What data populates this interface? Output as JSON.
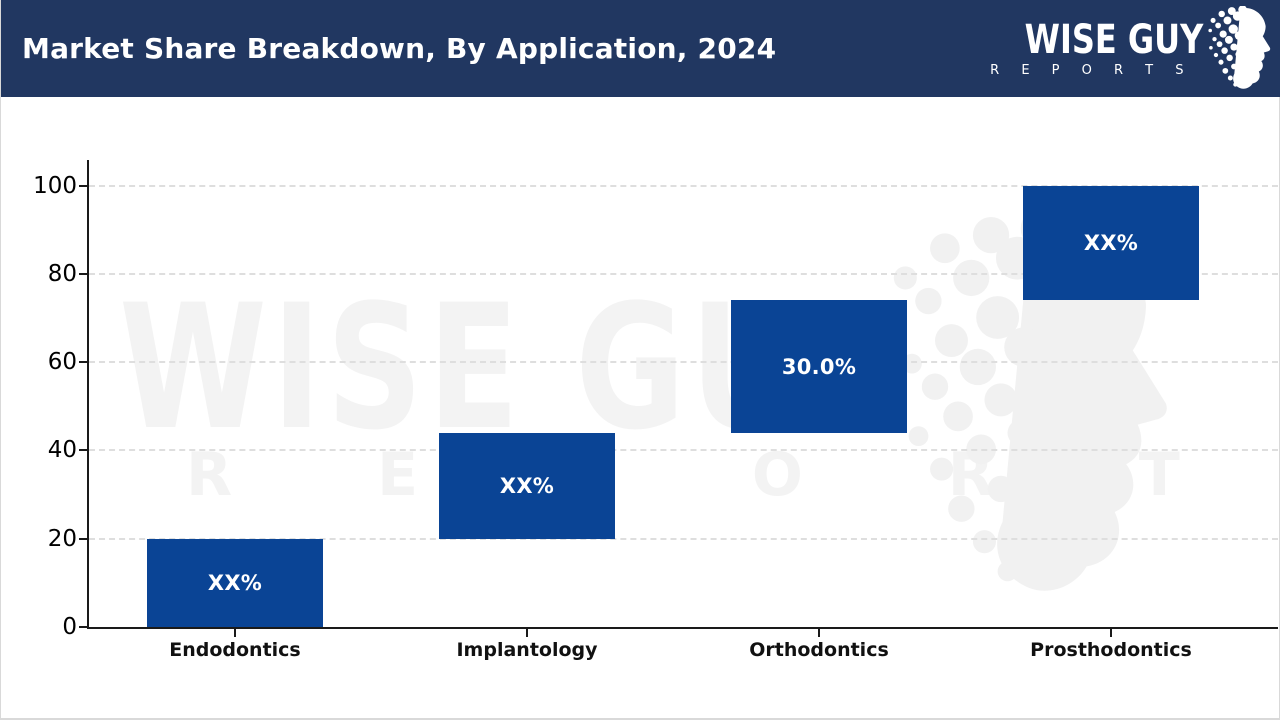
{
  "header": {
    "title": "Market Share Breakdown, By Application, 2024",
    "logo": {
      "line1": "WISE GUY",
      "line2": "R E P O R T S",
      "icon": "dot-face-profile-icon"
    }
  },
  "watermark": {
    "line1": "WISE GUY",
    "line2": "R E P O R T S",
    "icon": "dot-face-profile-icon"
  },
  "colors": {
    "header_bg": "#213761",
    "bar": "#0a4495",
    "grid": "#dedede",
    "axis": "#1a1a1a",
    "watermark": "#f3f3f3"
  },
  "chart_data": {
    "type": "bar",
    "subtype": "waterfall",
    "title": "Market Share Breakdown, By Application, 2024",
    "xlabel": "",
    "ylabel": "",
    "categories": [
      "Endodontics",
      "Implantology",
      "Orthodontics",
      "Prosthodontics"
    ],
    "segments": [
      {
        "category": "Endodontics",
        "start": 0,
        "end": 20,
        "value": 20,
        "label": "XX%"
      },
      {
        "category": "Implantology",
        "start": 20,
        "end": 44,
        "value": 24,
        "label": "XX%"
      },
      {
        "category": "Orthodontics",
        "start": 44,
        "end": 74,
        "value": 30,
        "label": "30.0%"
      },
      {
        "category": "Prosthodontics",
        "start": 74,
        "end": 100,
        "value": 26,
        "label": "XX%"
      }
    ],
    "yticks": [
      0,
      20,
      40,
      60,
      80,
      100
    ],
    "ylim": [
      0,
      105.8
    ],
    "grid": "dashed-horizontal",
    "legend": "none",
    "bar_color": "#0a4495"
  }
}
